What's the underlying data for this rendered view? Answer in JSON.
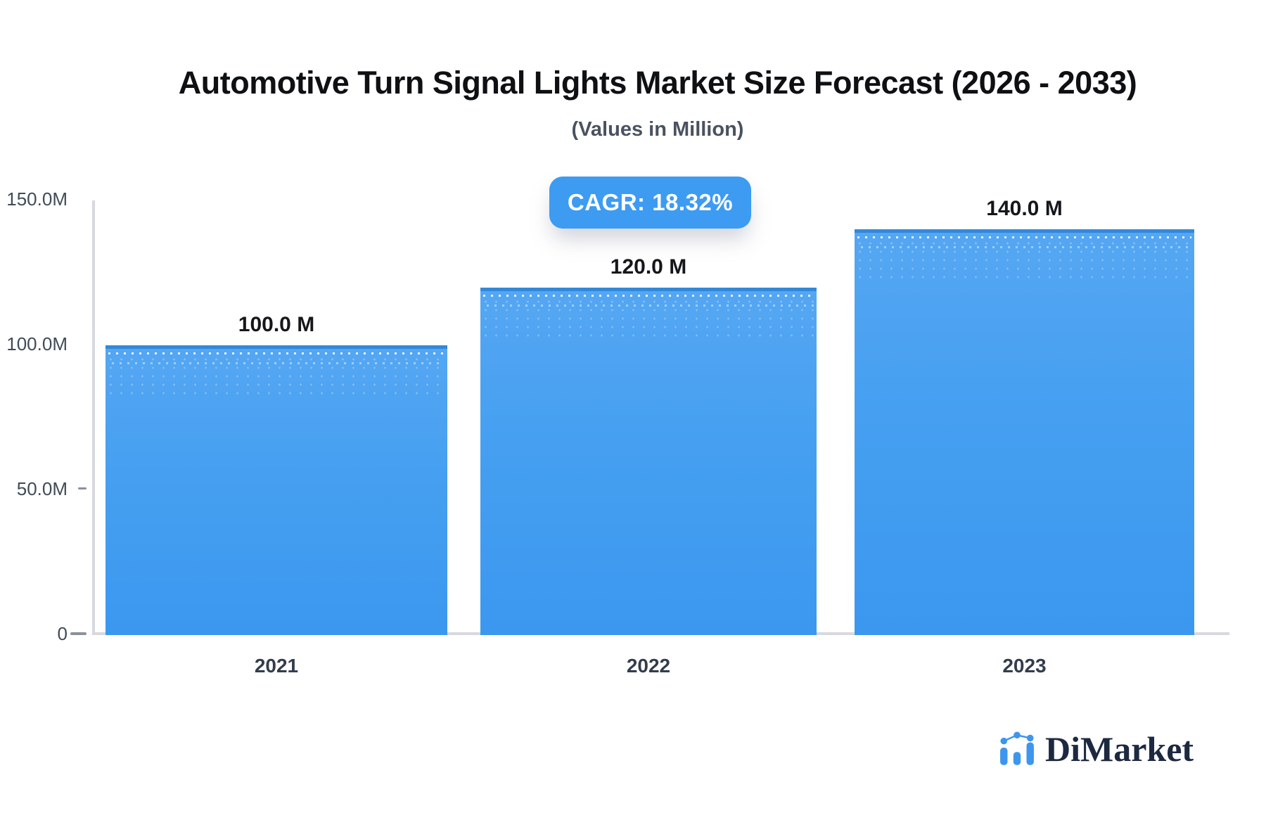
{
  "header": {
    "title": "Automotive Turn Signal Lights Market Size Forecast (2026 - 2033)",
    "subtitle": "(Values in Million)",
    "cagr_label": "CAGR: 18.32%"
  },
  "chart_data": {
    "type": "bar",
    "title": "Automotive Turn Signal Lights Market Size Forecast (2026 - 2033)",
    "subtitle": "(Values in Million)",
    "unit": "Million",
    "categories": [
      "2021",
      "2022",
      "2023"
    ],
    "values": [
      100,
      120,
      140
    ],
    "value_labels": [
      "100.0 M",
      "120.0 M",
      "140.0 M"
    ],
    "cagr_percent": 18.32,
    "ylim": [
      0,
      150
    ],
    "grid": false,
    "legend": false,
    "yticks": [
      {
        "label": "150.0M",
        "value": 150,
        "dash": false
      },
      {
        "label": "100.0M",
        "value": 100,
        "dash": false
      },
      {
        "label": "50.0M",
        "value": 50,
        "dash": true
      },
      {
        "label": "0",
        "value": 0,
        "dash": true
      }
    ],
    "bar_color": "#45a0f1",
    "bar_side_color": "#2d73b2",
    "badge_color": "#3d9bf2"
  },
  "footer": {
    "brand": "DiMarket",
    "brand_color": "#1d2940",
    "icon_color": "#3d96ee"
  }
}
